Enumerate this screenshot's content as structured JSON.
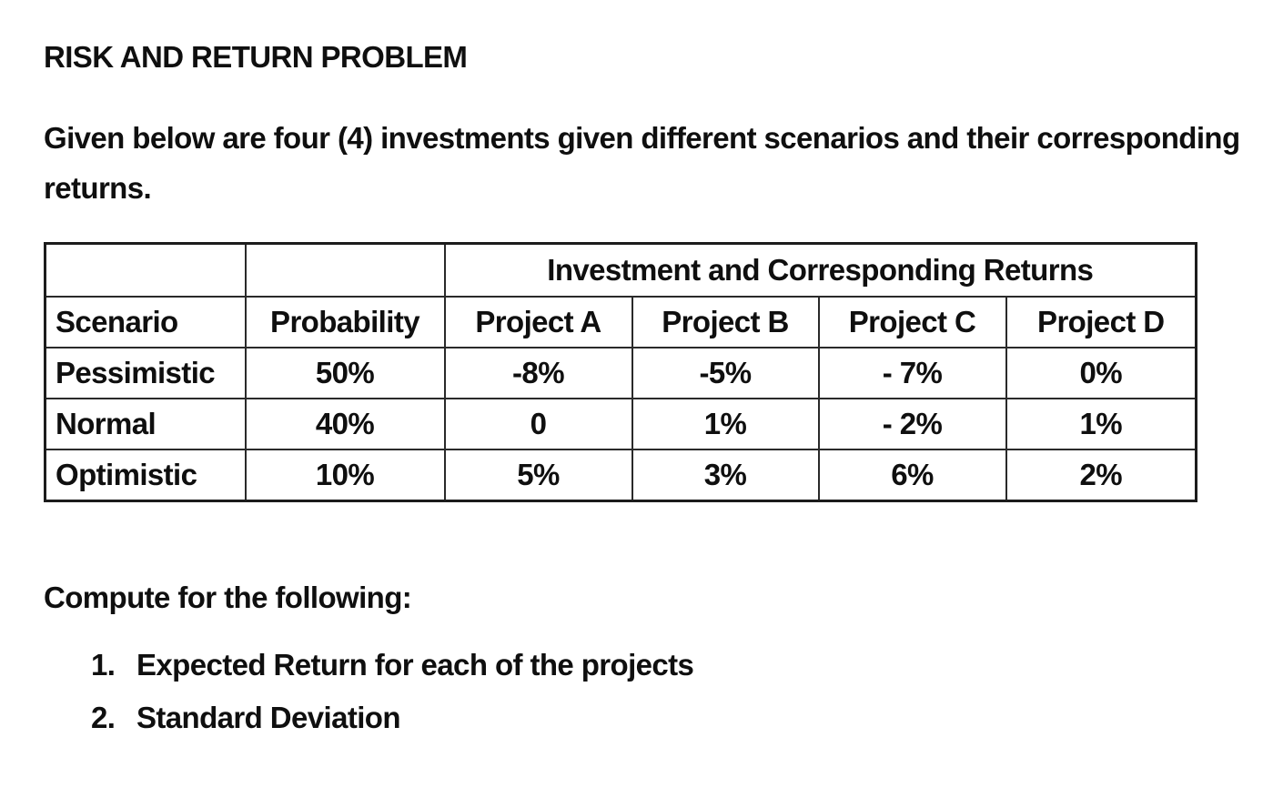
{
  "page": {
    "title": "RISK AND RETURN PROBLEM",
    "intro": "Given below are four (4) investments given different scenarios and their corresponding returns.",
    "compute_heading": "Compute for the following:",
    "tasks": [
      {
        "number": "1.",
        "text": "Expected Return for each of the projects"
      },
      {
        "number": "2.",
        "text": "Standard Deviation"
      }
    ]
  },
  "table": {
    "merged_header": "Investment and Corresponding Returns",
    "columns": [
      "Scenario",
      "Probability",
      "Project A",
      "Project B",
      "Project C",
      "Project D"
    ],
    "rows": [
      [
        "Pessimistic",
        "50%",
        "-8%",
        "-5%",
        "- 7%",
        "0%"
      ],
      [
        "Normal",
        "40%",
        "0",
        "1%",
        "- 2%",
        "1%"
      ],
      [
        "Optimistic",
        "10%",
        "5%",
        "3%",
        "6%",
        "2%"
      ]
    ]
  },
  "colors": {
    "text": "#0f0f0f",
    "border": "#1c1c1c",
    "background": "#ffffff"
  }
}
